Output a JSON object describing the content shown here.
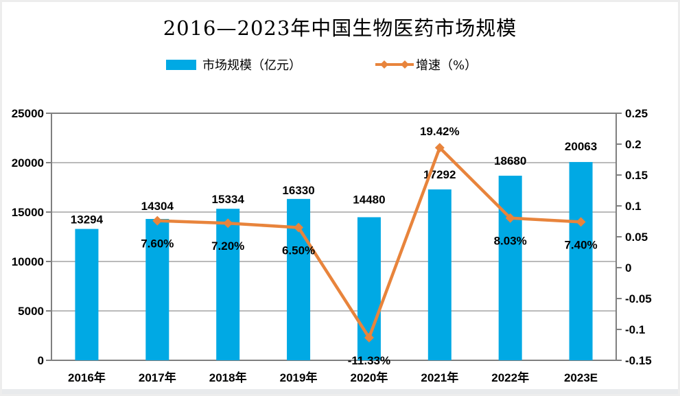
{
  "title": "2016—2023年中国生物医药市场规模",
  "legend": {
    "items": [
      {
        "label": "市场规模（亿元）",
        "swatch": "bar",
        "color": "#00a9e4"
      },
      {
        "label": "增速（%）",
        "swatch": "line-diamond",
        "color": "#e8843c"
      }
    ]
  },
  "chart_data": {
    "type": "combo-bar-line",
    "title": "2016—2023年中国生物医药市场规模",
    "categories": [
      "2016年",
      "2017年",
      "2018年",
      "2019年",
      "2020年",
      "2021年",
      "2022年",
      "2023E"
    ],
    "series": [
      {
        "name": "市场规模（亿元）",
        "type": "bar",
        "axis": "left",
        "color": "#00a9e4",
        "values": [
          13294,
          14304,
          15334,
          16330,
          14480,
          17292,
          18680,
          20063
        ],
        "data_labels": [
          "13294",
          "14304",
          "15334",
          "16330",
          "14480",
          "17292",
          "18680",
          "20063"
        ]
      },
      {
        "name": "增速（%）",
        "type": "line",
        "axis": "right",
        "marker": "diamond",
        "color": "#e8843c",
        "values": [
          null,
          0.076,
          0.072,
          0.065,
          -0.1133,
          0.1942,
          0.0803,
          0.074
        ],
        "data_labels": [
          null,
          "7.60%",
          "7.20%",
          "6.50%",
          "-11.33%",
          "19.42%",
          "8.03%",
          "7.40%"
        ],
        "label_placement": [
          null,
          "below",
          "below",
          "below",
          "below",
          "above",
          "below",
          "below"
        ]
      }
    ],
    "left_axis": {
      "min": 0,
      "max": 25000,
      "step": 5000,
      "tick_labels": [
        "25000",
        "20000",
        "15000",
        "10000",
        "5000",
        "0"
      ]
    },
    "right_axis": {
      "min": -0.15,
      "max": 0.25,
      "step": 0.05,
      "tick_labels": [
        "0.25",
        "0.2",
        "0.15",
        "0.1",
        "0.05",
        "0",
        "-0.05",
        "-0.1",
        "-0.15"
      ]
    },
    "gridlines": "horizontal-left-axis-major",
    "legend_position": "top"
  },
  "colors": {
    "bar": "#00a9e4",
    "line": "#e8843c",
    "grid": "#a3a3a3",
    "axis_border": "#7f7f7f",
    "text": "#000000",
    "canvas_border": "#ededed",
    "bottom_strip": "#e8eaec"
  }
}
